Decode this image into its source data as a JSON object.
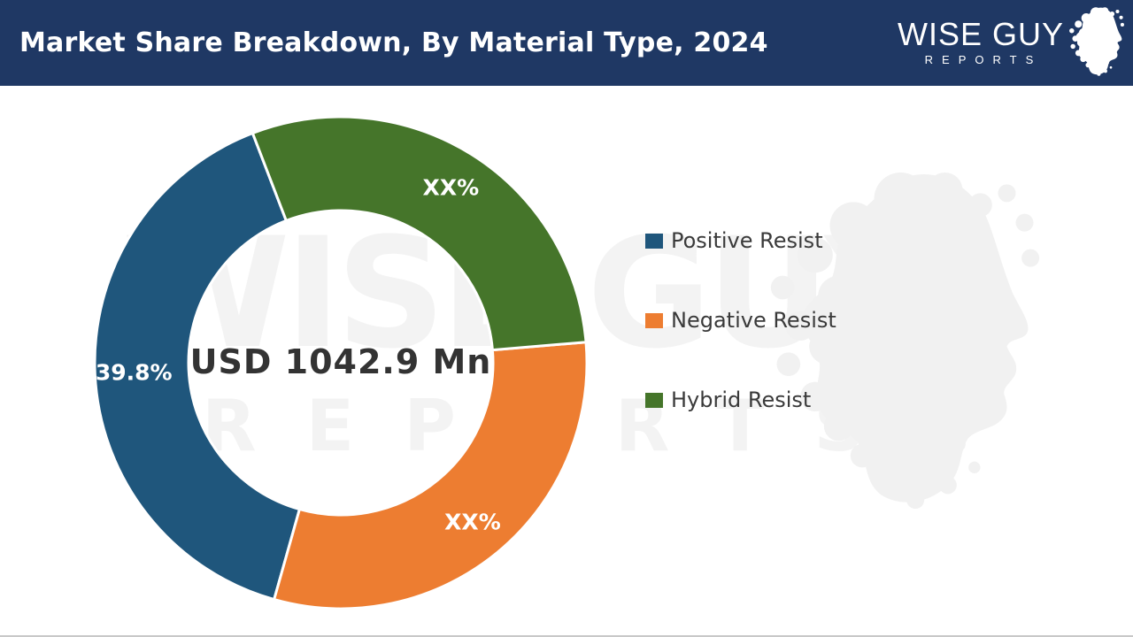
{
  "header": {
    "title": "Market Share Breakdown, By Material Type, 2024",
    "background_color": "#1F3864",
    "logo": {
      "line1": "WISE GUY",
      "line2": "REPORTS"
    }
  },
  "chart_data": {
    "type": "pie",
    "subtype": "donut",
    "title": "Market Share Breakdown, By Material Type, 2024",
    "center_label": "USD 1042.9 Mn",
    "start_angle_deg": 111,
    "counterclockwise": true,
    "legend_position": "right",
    "segments": [
      {
        "label": "Positive Resist",
        "value_pct": 39.8,
        "display": "39.8%",
        "color": "#1F567C"
      },
      {
        "label": "Negative Resist",
        "value_pct": 30.7,
        "display": "XX%",
        "color": "#ED7D31"
      },
      {
        "label": "Hybrid Resist",
        "value_pct": 29.5,
        "display": "XX%",
        "color": "#45752A"
      }
    ]
  },
  "watermark": {
    "text1": "WISE GUY",
    "text2": "REPORTS"
  }
}
